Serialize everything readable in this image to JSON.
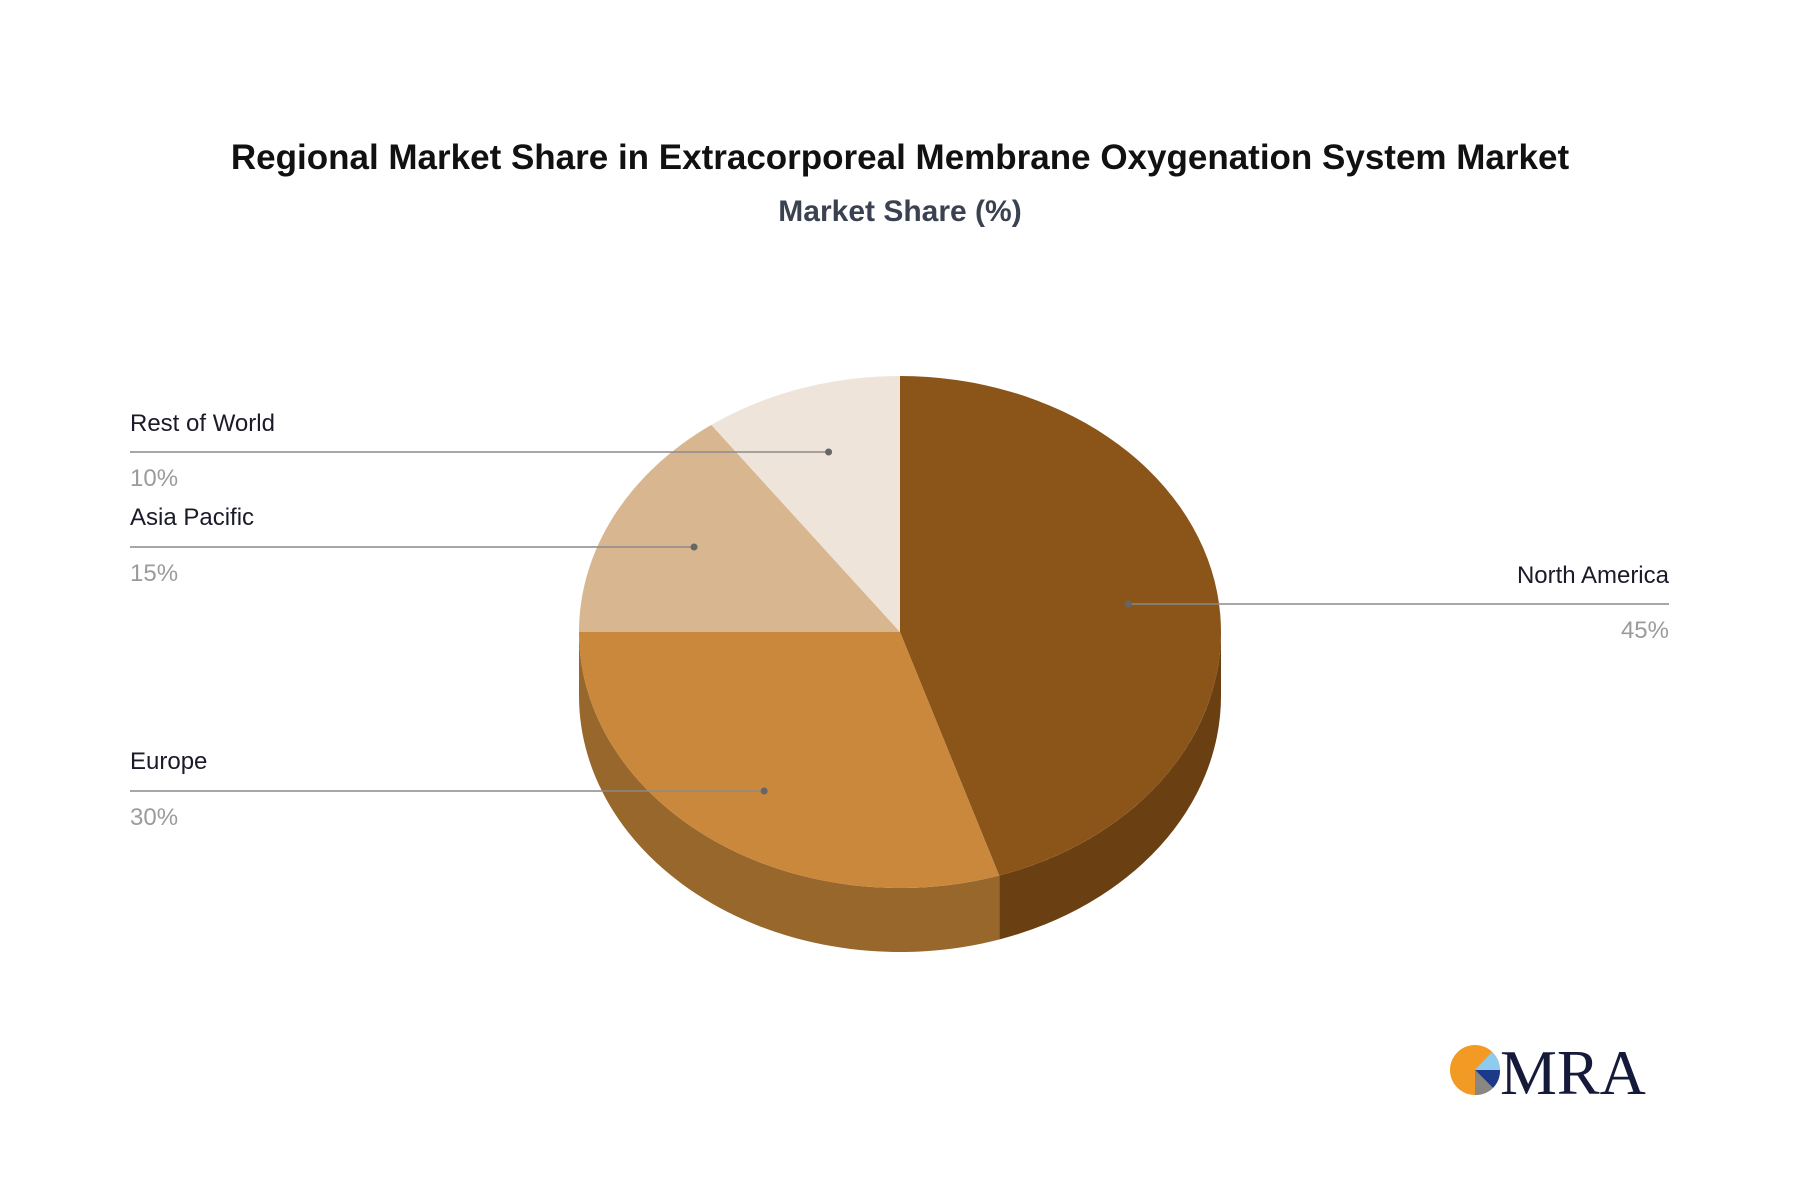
{
  "chart_data": {
    "type": "pie",
    "title": "Regional Market Share in Extracorporeal Membrane Oxygenation System Market",
    "subtitle": "Market Share (%)",
    "slices": [
      {
        "label": "North America",
        "value": 45,
        "value_label": "45%",
        "color": "#8b5419",
        "side_color": "#6a4013"
      },
      {
        "label": "Europe",
        "value": 30,
        "value_label": "30%",
        "color": "#ca883c",
        "side_color": "#98672c"
      },
      {
        "label": "Asia Pacific",
        "value": 15,
        "value_label": "15%",
        "color": "#d8b690",
        "side_color": "#a88d6e"
      },
      {
        "label": "Rest of World",
        "value": 10,
        "value_label": "10%",
        "color": "#efe4da",
        "side_color": "#bbb1a8"
      }
    ],
    "start_angle": "top, clockwise",
    "legend": "leader-line labels"
  },
  "logo": {
    "text": "MRA",
    "colors": [
      "#f39a25",
      "#8ecbef",
      "#1d3a8a",
      "#8a8782",
      "#161a3a"
    ]
  }
}
